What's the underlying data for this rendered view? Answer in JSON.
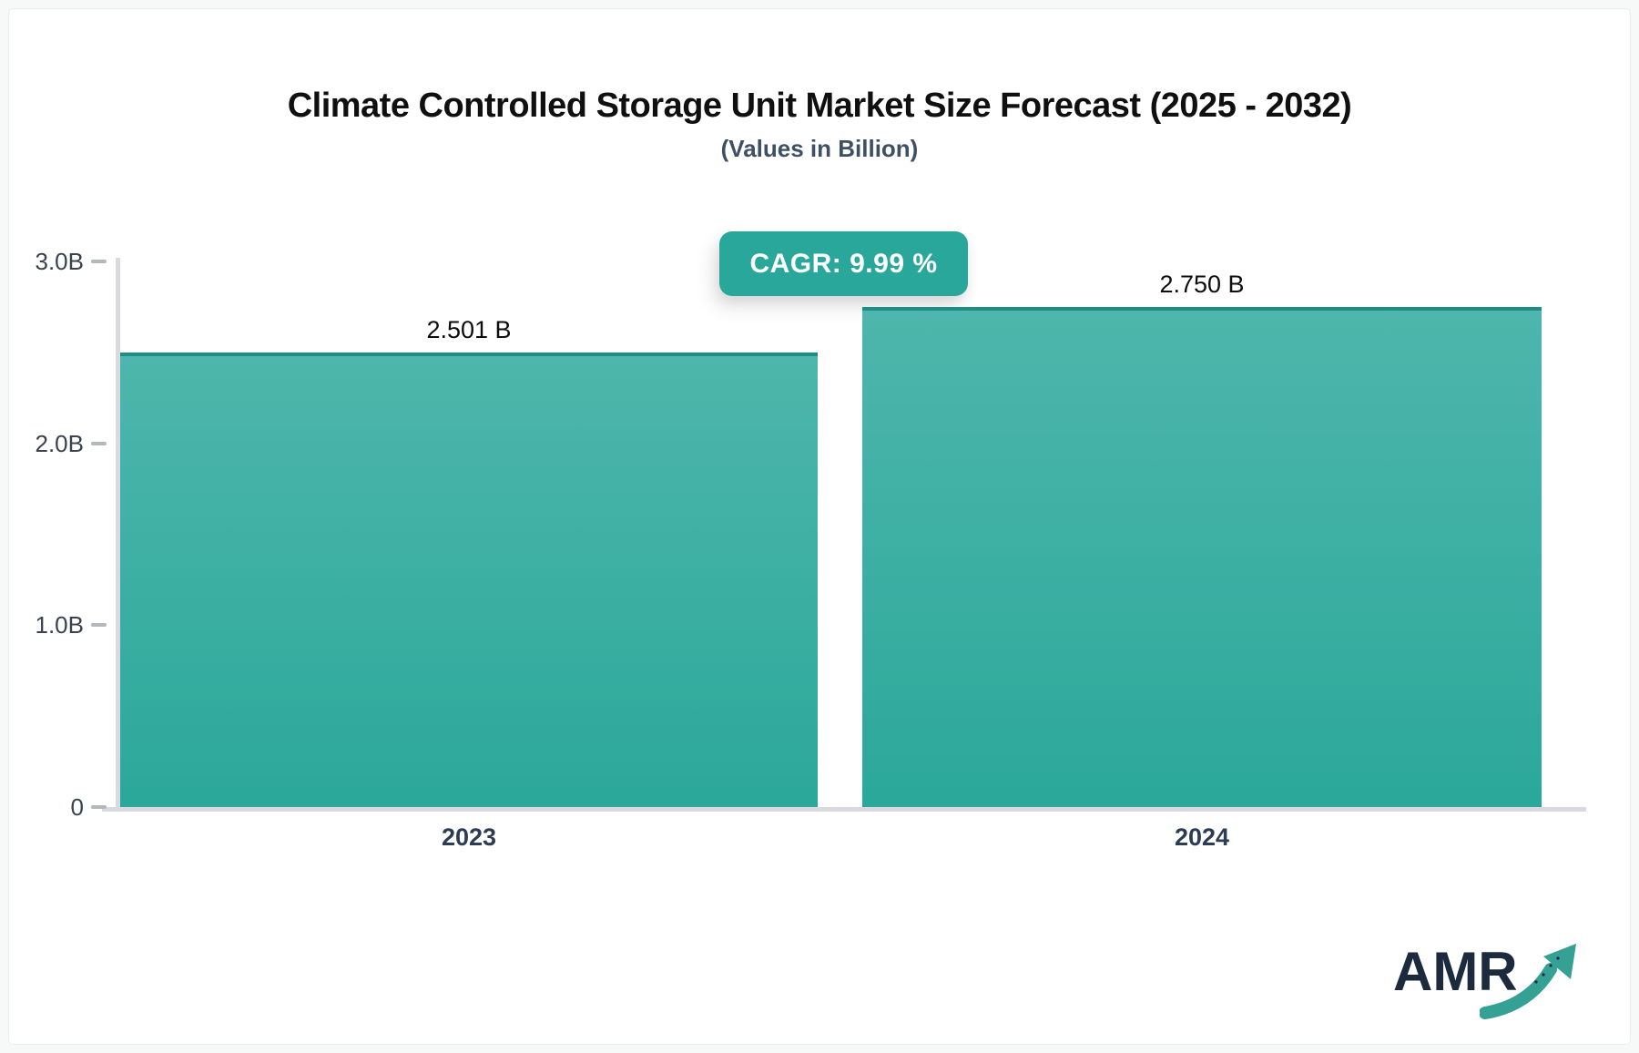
{
  "title": "Climate Controlled Storage Unit Market Size Forecast (2025 - 2032)",
  "subtitle": "(Values in Billion)",
  "badge": {
    "label": "CAGR: 9.99 %"
  },
  "colors": {
    "accent_teal": "#2aa79b",
    "bar_gradient_top": "#4eb6ac",
    "bar_gradient_bottom": "#2ba89a",
    "bar_top_edge": "#1e8e85",
    "axis_line": "#d9dade",
    "tick_dash": "#b4b7bc",
    "title_text": "#101010",
    "subtitle_text": "#3f5065",
    "category_text": "#2c3c52"
  },
  "chart_data": {
    "type": "bar",
    "title": "Climate Controlled Storage Unit Market Size Forecast (2025 - 2032)",
    "subtitle": "(Values in Billion)",
    "categories": [
      "2023",
      "2024"
    ],
    "values": [
      2.501,
      2.75
    ],
    "bar_labels": [
      "2.501 B",
      "2.750 B"
    ],
    "cagr_percent": "9.99 %",
    "xlabel": "",
    "ylabel": "",
    "ylim": [
      0,
      3.0
    ],
    "yticks": [
      {
        "value": 3.0,
        "label": "3.0B"
      },
      {
        "value": 2.0,
        "label": "2.0B"
      },
      {
        "value": 1.0,
        "label": "1.0B"
      },
      {
        "value": 0,
        "label": "0"
      }
    ],
    "grid": false,
    "legend": false
  },
  "logo": {
    "text": "AMR",
    "text_color": "#1b2a3c",
    "arrow_color": "#35a094"
  }
}
